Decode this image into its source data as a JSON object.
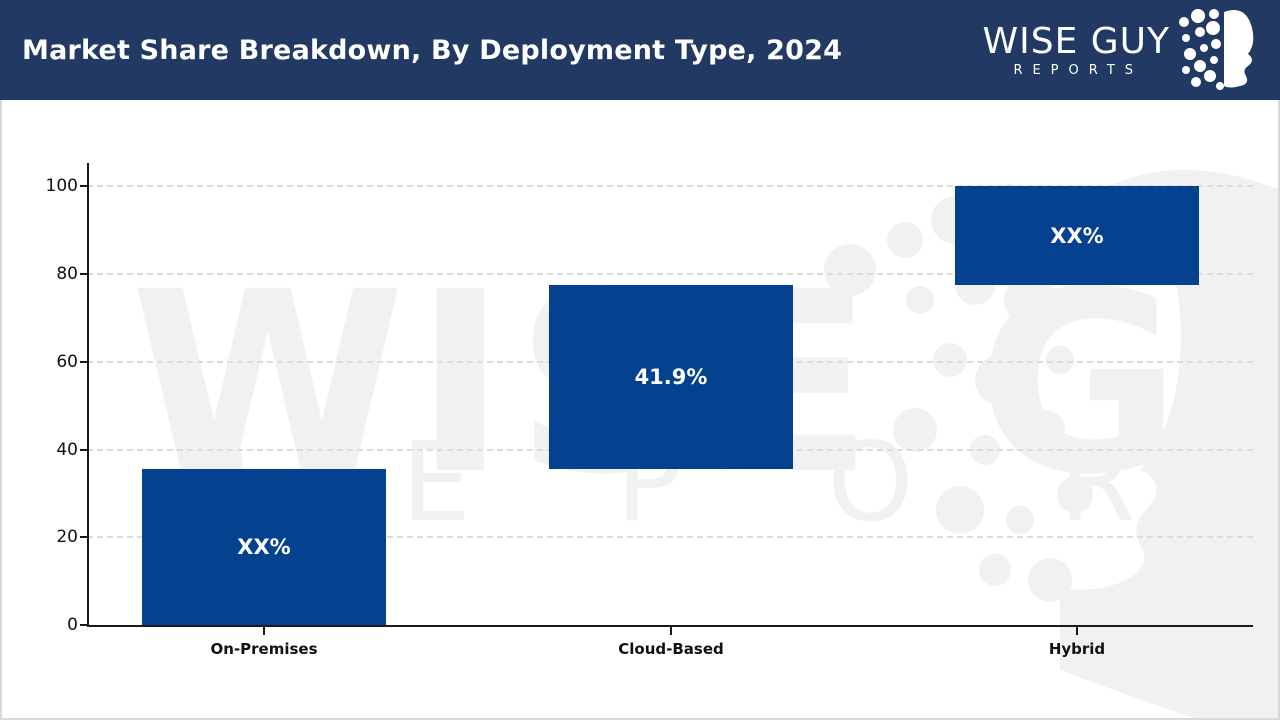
{
  "header": {
    "title": "Market Share Breakdown, By Deployment Type, 2024",
    "bg_color": "#213963",
    "logo": {
      "line1": "WISE GUY",
      "line2": "REPORTS"
    }
  },
  "watermark": {
    "line1": "WISE GUY",
    "line2": "R E P O R T S"
  },
  "chart_data": {
    "type": "bar",
    "subtype": "waterfall",
    "title": "Market Share Breakdown, By Deployment Type, 2024",
    "categories": [
      "On-Premises",
      "Cloud-Based",
      "Hybrid"
    ],
    "bars": [
      {
        "category": "On-Premises",
        "start": 0,
        "end": 35.6,
        "height": 35.6,
        "label": "XX%"
      },
      {
        "category": "Cloud-Based",
        "start": 35.6,
        "end": 77.5,
        "height": 41.9,
        "label": "41.9%"
      },
      {
        "category": "Hybrid",
        "start": 77.5,
        "end": 100,
        "height": 22.5,
        "label": "XX%"
      }
    ],
    "bar_color": "#04418f",
    "bar_label_color": "#ffffff",
    "ylim": [
      0,
      105
    ],
    "yticks": [
      0,
      20,
      40,
      60,
      80,
      100
    ],
    "grid": "horizontal dashed",
    "legend": "none",
    "xlabel": "",
    "ylabel": ""
  }
}
